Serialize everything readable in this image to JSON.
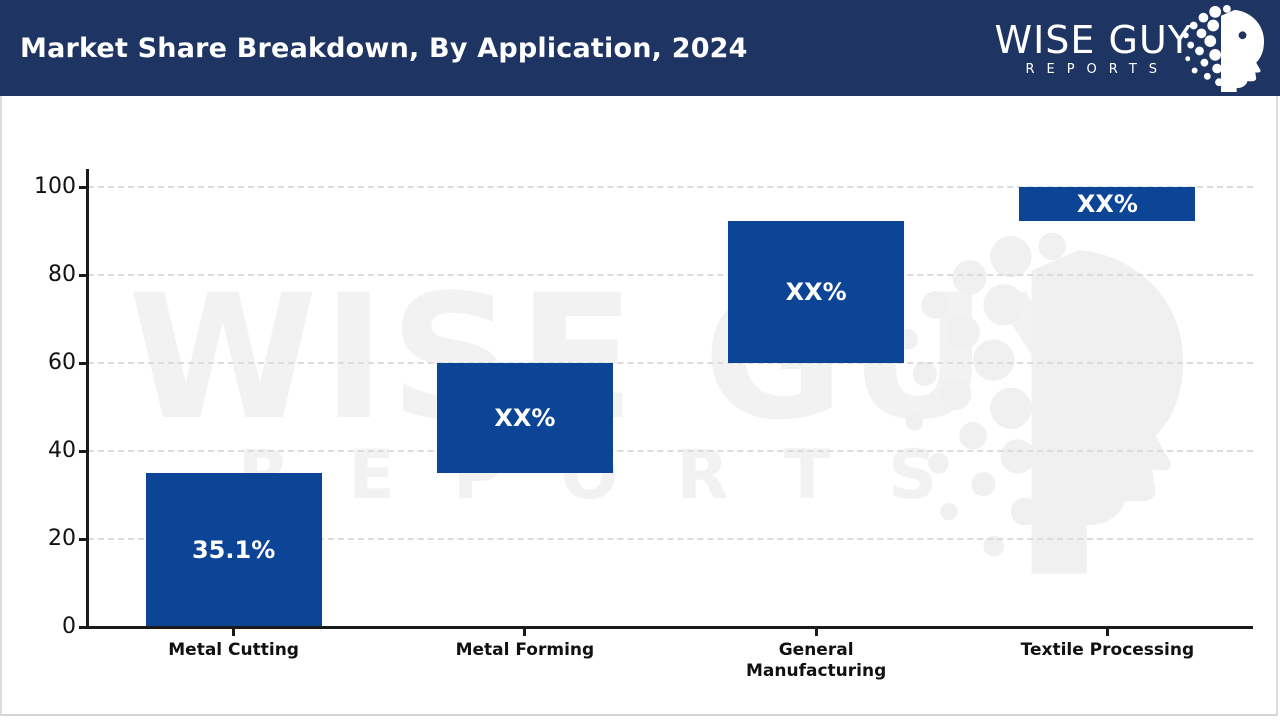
{
  "header": {
    "title": "Market Share Breakdown, By Application, 2024",
    "logo_line1": "WISE GUY",
    "logo_line2": "REPORTS"
  },
  "watermark": {
    "line1": "WISE GUY",
    "line2": "REPORTS"
  },
  "colors": {
    "header_bg": "#1e3462",
    "bar": "#0c4496",
    "bar_label_text": "#ffffff",
    "gridline": "#dcdcdc",
    "axis": "#1a1a1a",
    "watermark": "#f2f2f2"
  },
  "chart_data": {
    "type": "bar",
    "subtype": "waterfall",
    "title": "Market Share Breakdown, By Application, 2024",
    "xlabel": "",
    "ylabel": "",
    "categories": [
      "Metal Cutting",
      "Metal Forming",
      "General\nManufacturing",
      "Textile Processing"
    ],
    "segments": [
      {
        "category": "Metal Cutting",
        "start": 0,
        "end": 35.1,
        "label": "35.1%"
      },
      {
        "category": "Metal Forming",
        "start": 35.1,
        "end": 60,
        "label": "XX%"
      },
      {
        "category": "General Manufacturing",
        "start": 60,
        "end": 92.2,
        "label": "XX%"
      },
      {
        "category": "Textile Processing",
        "start": 92.2,
        "end": 100,
        "label": "XX%"
      }
    ],
    "y_ticks": [
      0,
      20,
      40,
      60,
      80,
      100
    ],
    "ylim": [
      0,
      104
    ],
    "grid": "horizontal-dashed",
    "legend": "none",
    "bar_color": "#0c4496"
  }
}
